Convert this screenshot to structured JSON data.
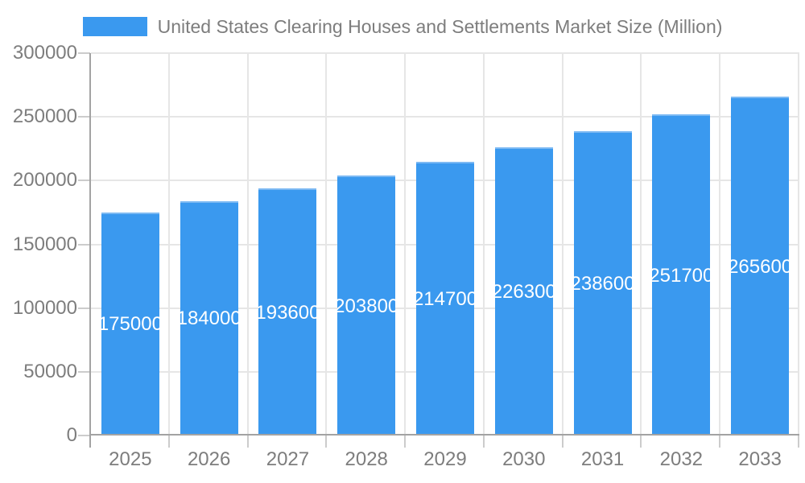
{
  "chart_data": {
    "type": "bar",
    "title": "United States Clearing Houses and Settlements Market Size (Million)",
    "legend": {
      "label": "United States Clearing Houses and Settlements Market Size (Million)",
      "position": "top"
    },
    "categories": [
      "2025",
      "2026",
      "2027",
      "2028",
      "2029",
      "2030",
      "2031",
      "2032",
      "2033"
    ],
    "values": [
      175000,
      184000,
      193600,
      203800,
      214700,
      226300,
      238600,
      251700,
      265600
    ],
    "bar_value_labels": [
      "175000",
      "184000",
      "193600",
      "203800",
      "214700",
      "226300",
      "238600",
      "251700",
      "265600"
    ],
    "xlabel": "",
    "ylabel": "",
    "ylim": [
      0,
      300000
    ],
    "y_ticks": [
      0,
      50000,
      100000,
      150000,
      200000,
      250000,
      300000
    ],
    "y_tick_labels": [
      "0",
      "50000",
      "100000",
      "150000",
      "200000",
      "250000",
      "300000"
    ],
    "grid": true,
    "colors": {
      "bar": "#3a99ef",
      "bar_top_edge": "#7cb9f3",
      "bar_label": "#ffffff",
      "grid": "#e6e6e6",
      "axis": "#a3a3a3",
      "tick": "#cccccc",
      "text": "#7d7d7d",
      "background": "#ffffff"
    }
  }
}
